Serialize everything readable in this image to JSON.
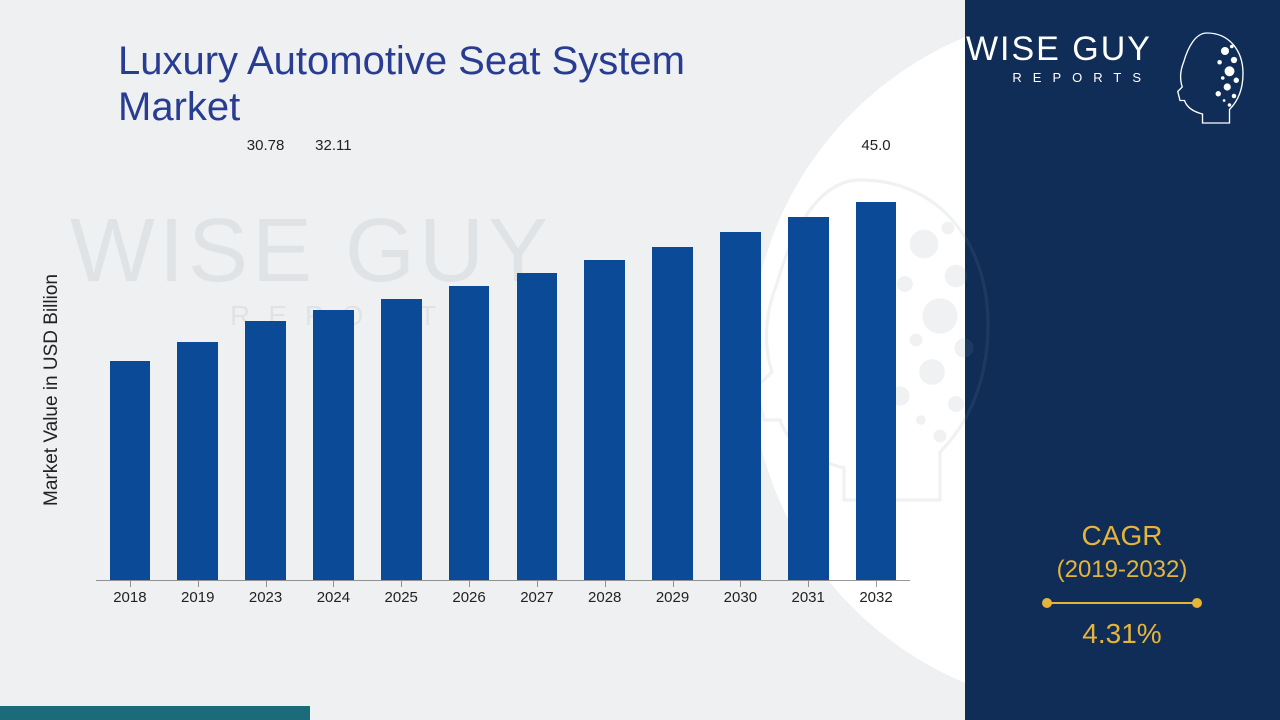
{
  "title": "Luxury Automotive Seat System Market",
  "title_fontsize": 40,
  "title_color": "#283c91",
  "background_color": "#eef0f2",
  "brand": {
    "name": "WISE GUY",
    "subtitle": "REPORTS"
  },
  "side_panel_color": "#0f2d57",
  "accent_color": "#1b6b7a",
  "cagr": {
    "label": "CAGR",
    "range": "(2019-2032)",
    "value": "4.31%",
    "color": "#e4b43b"
  },
  "chart": {
    "type": "bar",
    "ylabel": "Market Value in USD Billion",
    "ylabel_fontsize": 19,
    "xlabel_fontsize": 15,
    "bar_color": "#0a4a97",
    "bar_width_pct": 60,
    "ylim": [
      0,
      50
    ],
    "value_label_fontsize": 15,
    "categories": [
      "2018",
      "2019",
      "2023",
      "2024",
      "2025",
      "2026",
      "2027",
      "2028",
      "2029",
      "2030",
      "2031",
      "2032"
    ],
    "values": [
      26.1,
      28.3,
      30.78,
      32.11,
      33.5,
      35.0,
      36.5,
      38.1,
      39.7,
      41.4,
      43.2,
      45.0
    ],
    "value_labels": [
      "",
      "",
      "30.78",
      "32.11",
      "",
      "",
      "",
      "",
      "",
      "",
      "",
      "45.0"
    ]
  },
  "watermark": {
    "text": "WISE GUY",
    "sub": "REPORTS"
  }
}
